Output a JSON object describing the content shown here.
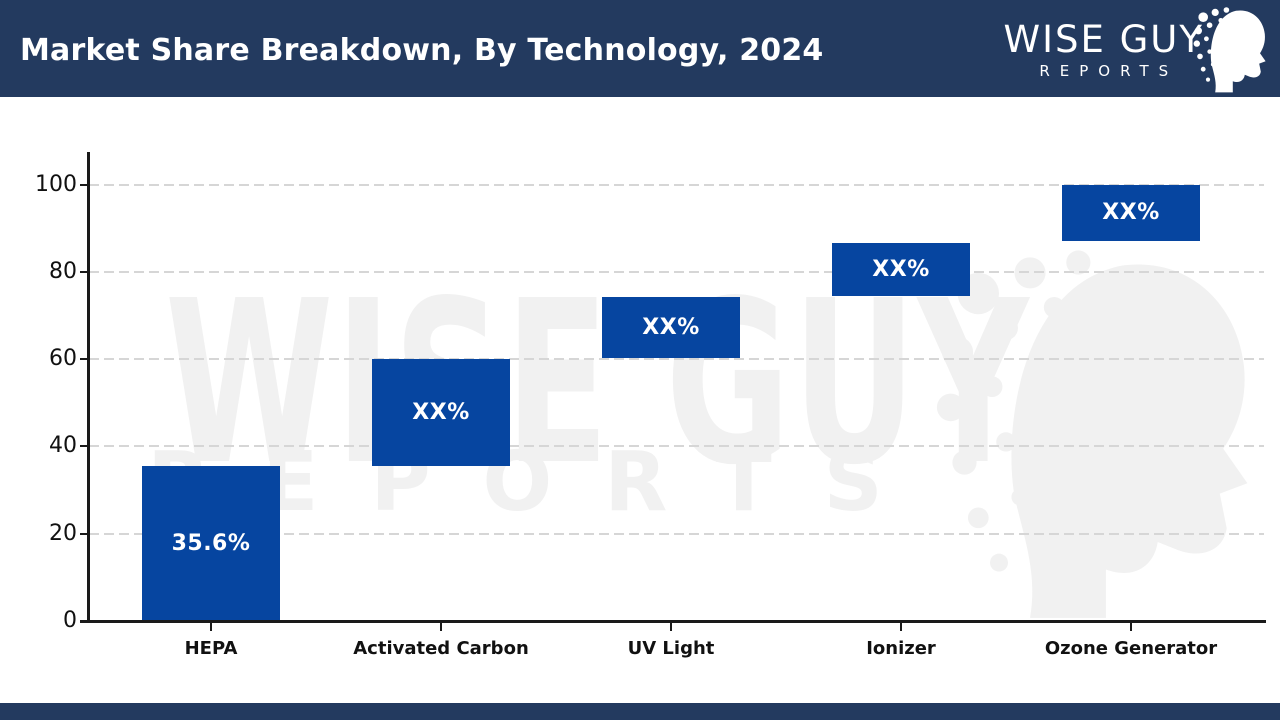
{
  "header": {
    "title": "Market Share Breakdown, By Technology, 2024",
    "logo_line1": "WISE GUY",
    "logo_line2": "REPORTS"
  },
  "watermark": {
    "line1": "WISE GUY",
    "line2": "REPORTS"
  },
  "colors": {
    "navy": "#233a5f",
    "bar": "#0645a0",
    "grid": "#d6d6d6",
    "wm": "#f1f1f1"
  },
  "chart_data": {
    "type": "bar",
    "subtype": "waterfall",
    "title": "Market Share Breakdown, By Technology, 2024",
    "categories": [
      "HEPA",
      "Activated Carbon",
      "UV Light",
      "Ionizer",
      "Ozone Generator"
    ],
    "series": [
      {
        "name": "Market share (%)",
        "segments": [
          {
            "category": "HEPA",
            "start": 0,
            "end": 35.6,
            "label": "35.6%"
          },
          {
            "category": "Activated Carbon",
            "start": 35.6,
            "end": 60.0,
            "label": "XX%"
          },
          {
            "category": "UV Light",
            "start": 60.3,
            "end": 74.3,
            "label": "XX%"
          },
          {
            "category": "Ionizer",
            "start": 74.5,
            "end": 86.5,
            "label": "XX%"
          },
          {
            "category": "Ozone Generator",
            "start": 87.0,
            "end": 100.0,
            "label": "XX%"
          }
        ]
      }
    ],
    "yticks": [
      0,
      20,
      40,
      60,
      80,
      100
    ],
    "ylim": [
      0,
      107
    ],
    "xlabel": "",
    "ylabel": "",
    "grid": "horizontal-dashed",
    "legend": "none",
    "bar_label_color": "#ffffff",
    "bar_color": "#0645a0"
  }
}
